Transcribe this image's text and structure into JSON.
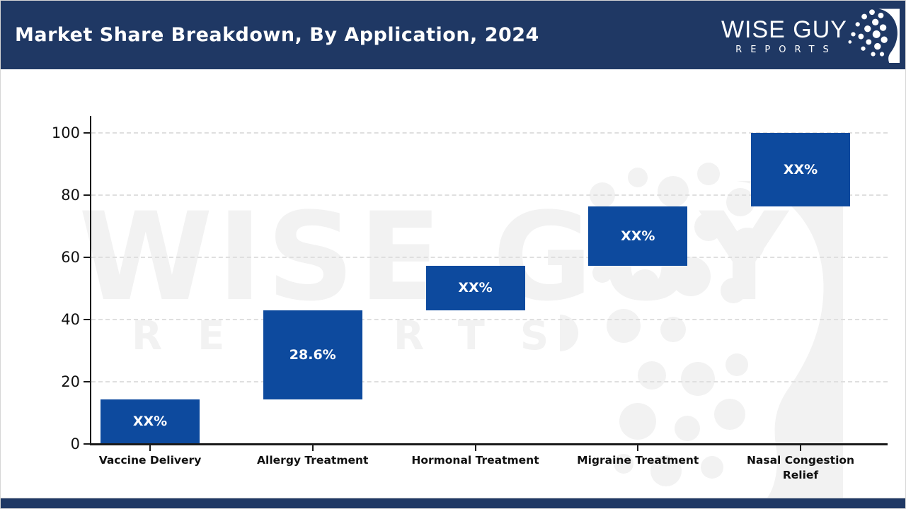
{
  "header": {
    "title": "Market Share Breakdown, By Application, 2024",
    "logo": {
      "line1": "WISE GUY",
      "line2": "REPORTS"
    }
  },
  "watermark": {
    "line1": "WISE GUY",
    "line2": "REPORTS"
  },
  "colors": {
    "header_bg": "#1f3864",
    "footer_bg": "#1f3864",
    "bar": "#0d4a9e",
    "bar_label_text": "#ffffff",
    "grid": "#dfdfdf",
    "axis": "#1a1a1a",
    "watermark": "#f2f2f2"
  },
  "chart_data": {
    "type": "bar",
    "subtype": "waterfall",
    "title": "Market Share Breakdown, By Application, 2024",
    "xlabel": "",
    "ylabel": "",
    "categories": [
      "Vaccine Delivery",
      "Allergy Treatment",
      "Hormonal Treatment",
      "Migraine Treatment",
      "Nasal Congestion Relief"
    ],
    "segments": [
      {
        "category": "Vaccine Delivery",
        "start": 0,
        "end": 14.3,
        "label": "XX%"
      },
      {
        "category": "Allergy Treatment",
        "start": 14.3,
        "end": 42.9,
        "label": "28.6%"
      },
      {
        "category": "Hormonal Treatment",
        "start": 42.9,
        "end": 57.1,
        "label": "XX%"
      },
      {
        "category": "Migraine Treatment",
        "start": 57.1,
        "end": 76.2,
        "label": "XX%"
      },
      {
        "category": "Nasal Congestion Relief",
        "start": 76.2,
        "end": 100,
        "label": "XX%"
      }
    ],
    "yticks": [
      0,
      20,
      40,
      60,
      80,
      100
    ],
    "ylim": [
      0,
      105
    ],
    "grid": "horizontal-dashed",
    "legend": "none"
  }
}
